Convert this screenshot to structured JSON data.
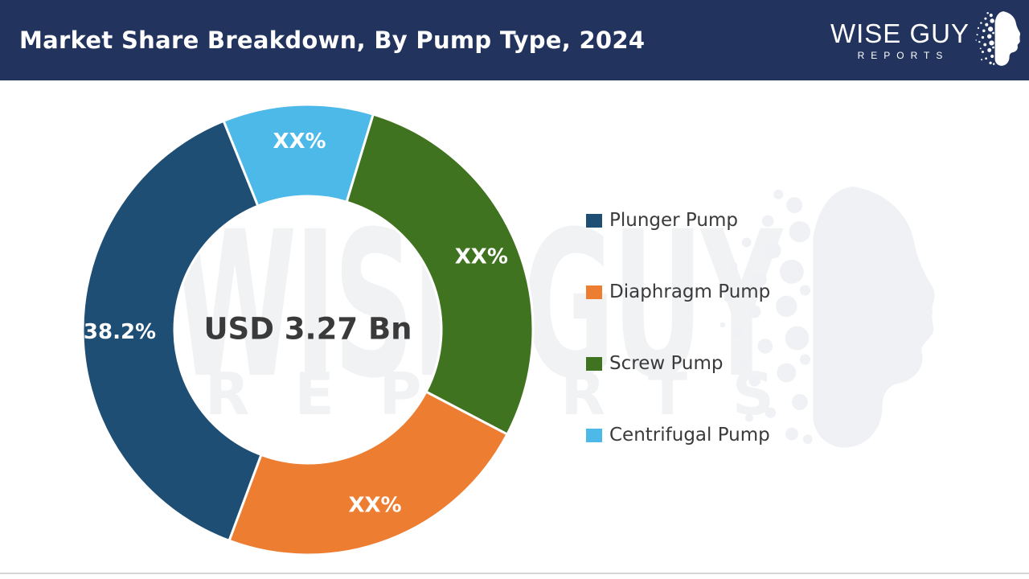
{
  "header": {
    "title": "Market Share Breakdown, By Pump Type, 2024",
    "bg_color": "#22345e",
    "logo": {
      "line1": "WISE GUY",
      "line2": "REPORTS"
    }
  },
  "watermark": {
    "line1": "WISE GUY",
    "line2": "REPORTS"
  },
  "chart_data": {
    "type": "pie",
    "variant": "donut",
    "title": "Market Share Breakdown, By Pump Type, 2024",
    "center_label": "USD 3.27 Bn",
    "start_angle_deg": -22,
    "outer_radius": 280,
    "inner_radius": 166,
    "label_radius": 234,
    "segments": [
      {
        "label": "Centrifugal Pump",
        "display_value": "XX%",
        "fraction_est": 0.108,
        "color": "#4db9e8"
      },
      {
        "label": "Screw Pump",
        "display_value": "XX%",
        "fraction_est": 0.28,
        "color": "#40731f"
      },
      {
        "label": "Diaphragm Pump",
        "display_value": "XX%",
        "fraction_est": 0.23,
        "color": "#ed7d31"
      },
      {
        "label": "Plunger Pump",
        "display_value": "38.2%",
        "fraction_est": 0.382,
        "color": "#1f4e74"
      }
    ],
    "legend": [
      {
        "label": "Plunger Pump",
        "color": "#1f4e74"
      },
      {
        "label": "Diaphragm Pump",
        "color": "#ed7d31"
      },
      {
        "label": "Screw Pump",
        "color": "#40731f"
      },
      {
        "label": "Centrifugal Pump",
        "color": "#4db9e8"
      }
    ],
    "legend_position": "right"
  }
}
